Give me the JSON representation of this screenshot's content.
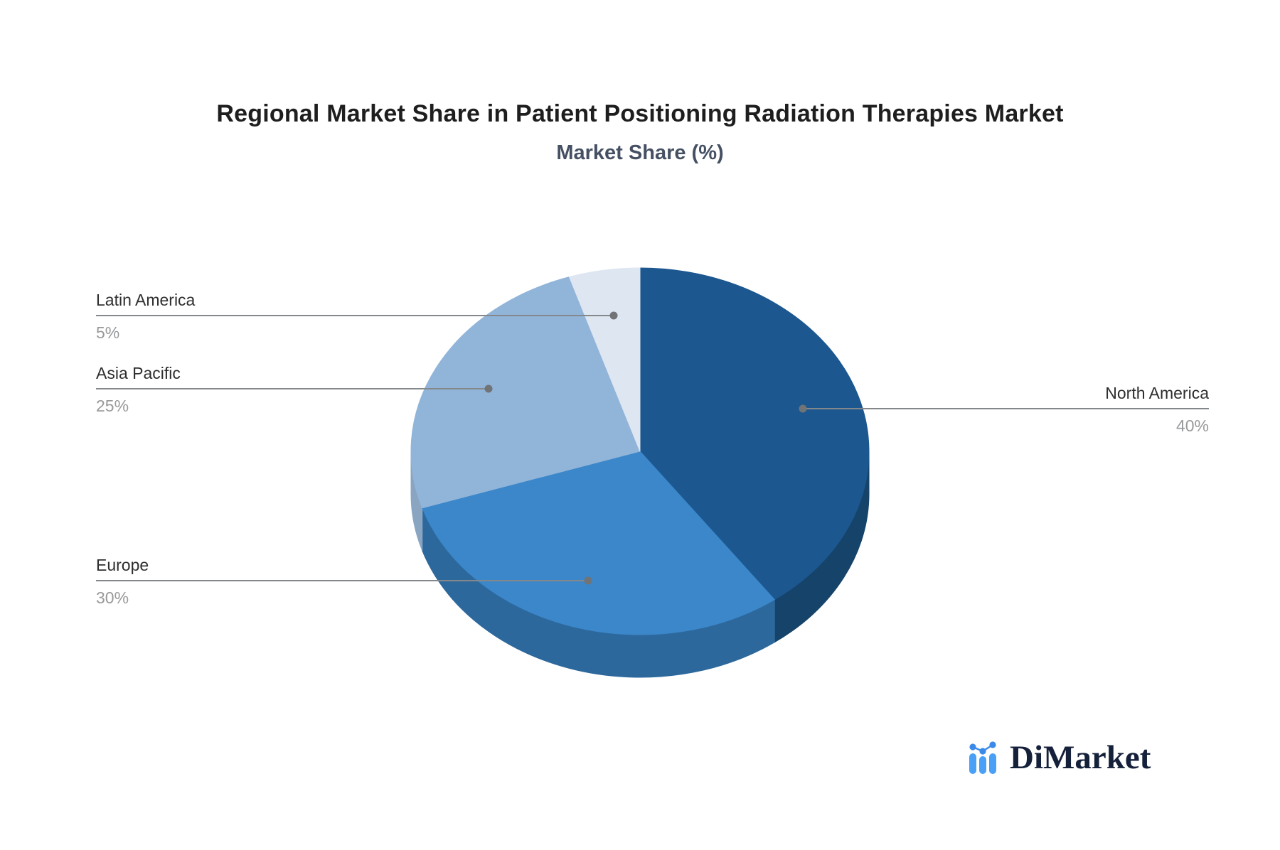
{
  "header": {
    "title": "Regional Market Share in Patient Positioning Radiation Therapies Market",
    "subtitle": "Market Share (%)"
  },
  "chart_data": {
    "type": "pie",
    "title": "Regional Market Share in Patient Positioning Radiation Therapies Market",
    "subtitle": "Market Share (%)",
    "unit": "%",
    "style": "3d-pie",
    "start_angle_deg": 0,
    "direction": "clockwise",
    "slices": [
      {
        "label": "North America",
        "value": 40,
        "display": "40%",
        "color": "#1C5790",
        "side_color": "#164369",
        "label_side": "right"
      },
      {
        "label": "Europe",
        "value": 30,
        "display": "30%",
        "color": "#3B87CA",
        "side_color": "#2D689C",
        "label_side": "left"
      },
      {
        "label": "Asia Pacific",
        "value": 25,
        "display": "25%",
        "color": "#91B4D9",
        "side_color": "#8AA5C2",
        "label_side": "left"
      },
      {
        "label": "Latin America",
        "value": 5,
        "display": "5%",
        "color": "#DDE6F1",
        "side_color": "#C9D6E8",
        "label_side": "left"
      }
    ],
    "label_text_color": "#2e2e2e",
    "value_text_color": "#98999b",
    "leader_line_color": "#85888b",
    "legend_position": "none",
    "grid": false
  },
  "branding": {
    "logo_text": "DiMarket",
    "logo_icon": "bar-chart-with-trend-dots-icon",
    "logo_text_color": "#15203b",
    "logo_accent_color": "#49A0F6"
  }
}
